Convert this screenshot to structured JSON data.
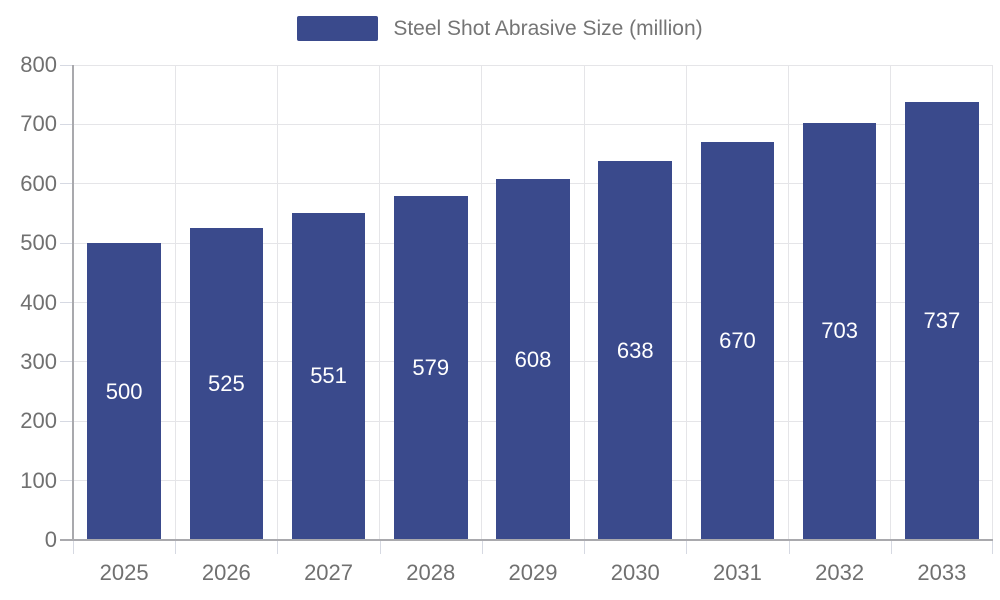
{
  "legend": {
    "label": "Steel Shot Abrasive Size (million)"
  },
  "chart_data": {
    "type": "bar",
    "categories": [
      "2025",
      "2026",
      "2027",
      "2028",
      "2029",
      "2030",
      "2031",
      "2032",
      "2033"
    ],
    "series": [
      {
        "name": "Steel Shot Abrasive Size (million)",
        "values": [
          500,
          525,
          551,
          579,
          608,
          638,
          670,
          703,
          737
        ]
      }
    ],
    "yticks": [
      0,
      100,
      200,
      300,
      400,
      500,
      600,
      700,
      800
    ],
    "ylim": [
      0,
      800
    ],
    "grid": true,
    "legend_position": "top",
    "bar_label_position": "inside-center"
  },
  "colors": {
    "bar": "#3A4A8C",
    "bar_label": "#FFFFFF",
    "axis_text": "#707070",
    "legend_text": "#757575",
    "axis_line": "#A9A9AD",
    "gridline": "#E5E5E8",
    "tick": "#D6D9E2",
    "background": "#FFFFFF"
  }
}
